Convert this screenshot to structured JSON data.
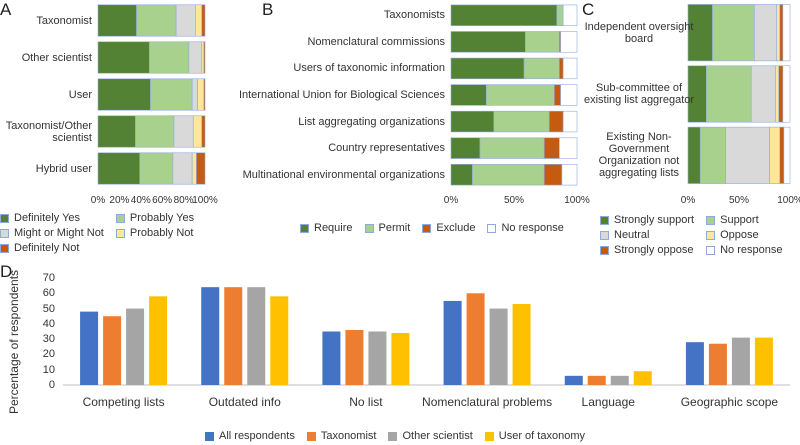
{
  "chart_data": [
    {
      "type": "bar",
      "panel": "A",
      "orientation": "horizontal",
      "stacked": true,
      "categories": [
        "Taxonomist",
        "Other scientist",
        "User",
        "Taxonomist/Other scientist",
        "Hybrid user"
      ],
      "series": [
        {
          "name": "Definitely Yes",
          "color": "#548235",
          "values": [
            36,
            48,
            49,
            35,
            39
          ]
        },
        {
          "name": "Probably Yes",
          "color": "#a9d18e",
          "values": [
            37,
            37,
            39,
            36,
            31
          ]
        },
        {
          "name": "Might or Might Not",
          "color": "#d9d9d9",
          "values": [
            18,
            12,
            5,
            18,
            18
          ]
        },
        {
          "name": "Probably Not",
          "color": "#ffe699",
          "values": [
            6,
            2,
            6,
            8,
            4
          ]
        },
        {
          "name": "Definitely Not",
          "color": "#c55a11",
          "values": [
            3,
            1,
            1,
            3,
            8
          ]
        }
      ],
      "xlim": [
        0,
        100
      ],
      "xticks": [
        {
          "value": 0,
          "label": "0%"
        },
        {
          "value": 20,
          "label": "20%"
        },
        {
          "value": 40,
          "label": "40%"
        },
        {
          "value": 60,
          "label": "60%"
        },
        {
          "value": 80,
          "label": "80%"
        },
        {
          "value": 100,
          "label": "100%"
        }
      ]
    },
    {
      "type": "bar",
      "panel": "B",
      "orientation": "horizontal",
      "stacked": true,
      "categories": [
        "Taxonomists",
        "Nomenclatural commissions",
        "Users of taxonomic information",
        "International Union for Biological Sciences",
        "List aggregating organizations",
        "Country representatives",
        "Multinational environmental organizations"
      ],
      "series": [
        {
          "name": "Require",
          "color": "#548235",
          "values": [
            84,
            59,
            58,
            28,
            34,
            23,
            17
          ]
        },
        {
          "name": "Permit",
          "color": "#a9d18e",
          "values": [
            5,
            27,
            28,
            54,
            44,
            51,
            57
          ]
        },
        {
          "name": "Exclude",
          "color": "#c55a11",
          "values": [
            0,
            1,
            3,
            5,
            11,
            12,
            14
          ]
        },
        {
          "name": "No response",
          "color": "#ffffff",
          "values": [
            11,
            13,
            11,
            13,
            11,
            14,
            12
          ]
        }
      ],
      "xlim": [
        0,
        100
      ],
      "xticks": [
        {
          "value": 0,
          "label": "0%"
        },
        {
          "value": 50,
          "label": "50%"
        },
        {
          "value": 100,
          "label": "100%"
        }
      ]
    },
    {
      "type": "bar",
      "panel": "C",
      "orientation": "horizontal",
      "stacked": true,
      "categories": [
        "Independent oversight board",
        "Sub-committee of existing list aggregator",
        "Existing Non-Government Organization not aggregating lists"
      ],
      "series": [
        {
          "name": "Strongly support",
          "color": "#548235",
          "values": [
            24,
            18,
            12
          ]
        },
        {
          "name": "Support",
          "color": "#a9d18e",
          "values": [
            41,
            44,
            25
          ]
        },
        {
          "name": "Neutral",
          "color": "#d9d9d9",
          "values": [
            22,
            24,
            43
          ]
        },
        {
          "name": "Oppose",
          "color": "#ffe699",
          "values": [
            3,
            3,
            10
          ]
        },
        {
          "name": "Strongly oppose",
          "color": "#c55a11",
          "values": [
            3,
            4,
            4
          ]
        },
        {
          "name": "No response",
          "color": "#ffffff",
          "values": [
            7,
            7,
            6
          ]
        }
      ],
      "xlim": [
        0,
        100
      ],
      "xticks": [
        {
          "value": 0,
          "label": "0%"
        },
        {
          "value": 50,
          "label": "50%"
        },
        {
          "value": 100,
          "label": "100%"
        }
      ]
    },
    {
      "type": "bar",
      "panel": "D",
      "orientation": "vertical",
      "stacked": false,
      "y_label": "Percentage of respondents",
      "categories": [
        "Competing lists",
        "Outdated info",
        "No list",
        "Nomenclatural problems",
        "Language",
        "Geographic scope"
      ],
      "series": [
        {
          "name": "All respondents",
          "color": "#4472c4",
          "values": [
            48,
            64,
            35,
            55,
            6,
            28
          ]
        },
        {
          "name": "Taxonomist",
          "color": "#ed7d31",
          "values": [
            45,
            64,
            36,
            60,
            6,
            27
          ]
        },
        {
          "name": "Other scientist",
          "color": "#a5a5a5",
          "values": [
            50,
            64,
            35,
            50,
            6,
            31
          ]
        },
        {
          "name": "User of taxonomy",
          "color": "#ffc000",
          "values": [
            58,
            58,
            34,
            53,
            9,
            31
          ]
        }
      ],
      "ylim": [
        0,
        70
      ],
      "yticks": [
        0,
        10,
        20,
        30,
        40,
        50,
        60,
        70
      ]
    }
  ]
}
